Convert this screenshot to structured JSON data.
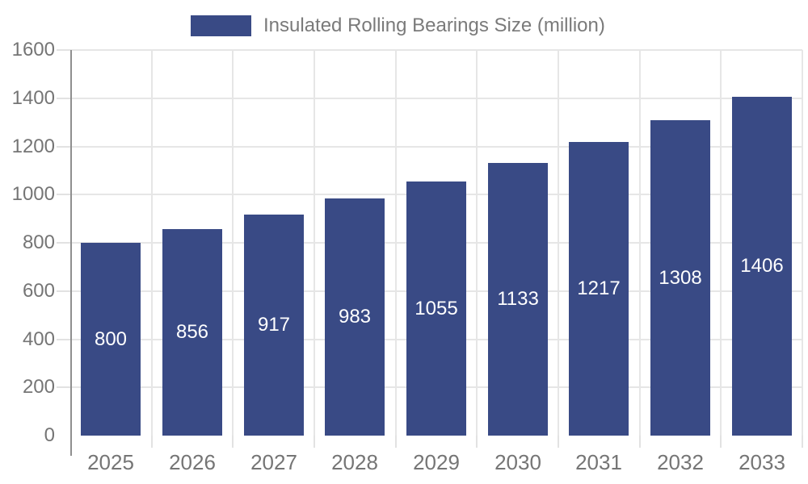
{
  "legend": {
    "label": "Insulated Rolling Bearings Size (million)"
  },
  "chart_data": {
    "type": "bar",
    "title": "Insulated Rolling Bearings Size (million)",
    "categories": [
      "2025",
      "2026",
      "2027",
      "2028",
      "2029",
      "2030",
      "2031",
      "2032",
      "2033"
    ],
    "values": [
      800,
      856,
      917,
      983,
      1055,
      1133,
      1217,
      1308,
      1406
    ],
    "xlabel": "",
    "ylabel": "",
    "ylim": [
      0,
      1600
    ],
    "yticks": [
      0,
      200,
      400,
      600,
      800,
      1000,
      1200,
      1400,
      1600
    ],
    "grid": true,
    "legend_position": "top",
    "value_labels": "inside-center"
  },
  "colors": {
    "bar": "#394a85",
    "value_label": "#ffffff",
    "grid": "#e6e6e6",
    "axis_line": "#8f8f8f",
    "tick_label": "#757575",
    "legend_text": "#7a7a7a",
    "background": "#ffffff"
  }
}
